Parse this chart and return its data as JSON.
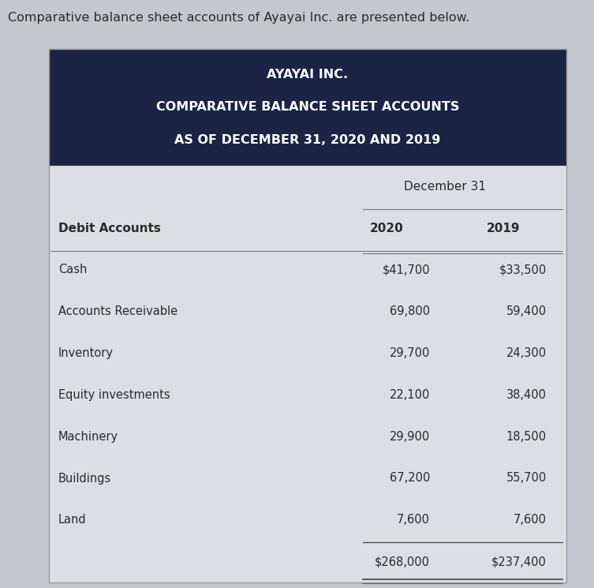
{
  "intro_text": "Comparative balance sheet accounts of Ayayai Inc. are presented below.",
  "title_line1": "AYAYAI INC.",
  "title_line2": "COMPARATIVE BALANCE SHEET ACCOUNTS",
  "title_line3": "AS OF DECEMBER 31, 2020 AND 2019",
  "header_bg_color": "#1b2445",
  "header_text_color": "#ffffff",
  "body_bg_color": "#dcdee3",
  "outer_bg_color": "#c5c7ce",
  "col_header_label": "December 31",
  "col1_label": "Debit Accounts",
  "col2_label": "2020",
  "col3_label": "2019",
  "rows": [
    [
      "Cash",
      "$41,700",
      "$33,500"
    ],
    [
      "Accounts Receivable",
      "69,800",
      "59,400"
    ],
    [
      "Inventory",
      "29,700",
      "24,300"
    ],
    [
      "Equity investments",
      "22,100",
      "38,400"
    ],
    [
      "Machinery",
      "29,900",
      "18,500"
    ],
    [
      "Buildings",
      "67,200",
      "55,700"
    ],
    [
      "Land",
      "7,600",
      "7,600"
    ]
  ],
  "total_row": [
    "",
    "$268,000",
    "$237,400"
  ],
  "line_color": "#777777",
  "total_line_color": "#444444",
  "text_color": "#2a2a2a",
  "intro_fontsize": 11.5,
  "title_fontsize": 11.5,
  "header_col_fontsize": 11,
  "body_fontsize": 10.5
}
